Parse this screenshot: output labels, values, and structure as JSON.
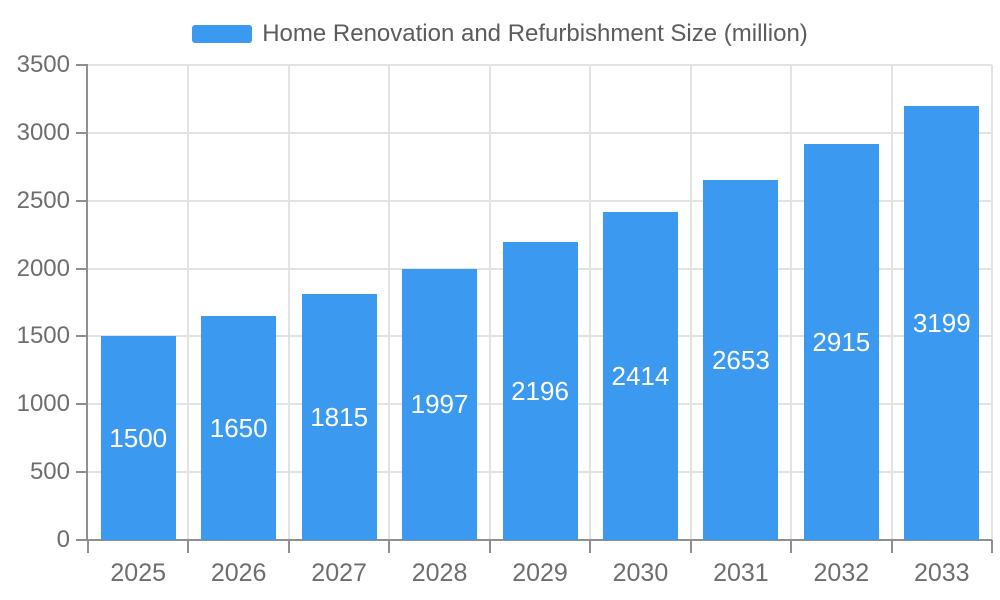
{
  "chart_data": {
    "type": "bar",
    "title": "Home Renovation and Refurbishment Size (million)",
    "legend_entries": [
      "Home Renovation and Refurbishment Size (million)"
    ],
    "legend_position": "top-center",
    "categories": [
      "2025",
      "2026",
      "2027",
      "2028",
      "2029",
      "2030",
      "2031",
      "2032",
      "2033"
    ],
    "values": [
      1500,
      1650,
      1815,
      1997,
      2196,
      2414,
      2653,
      2915,
      3199
    ],
    "xlabel": "",
    "ylabel": "",
    "ylim": [
      0,
      3500
    ],
    "ytick_step": 500,
    "grid": "on",
    "colors": {
      "bar": "#3C99F0",
      "grid_line": "#E3E3E3",
      "axis_line": "#8F8F8F",
      "axis_label": "#6E6E6E",
      "legend_text": "#5C5C5C",
      "value_label": "#FFFFFF",
      "background": "#FFFFFF"
    }
  }
}
